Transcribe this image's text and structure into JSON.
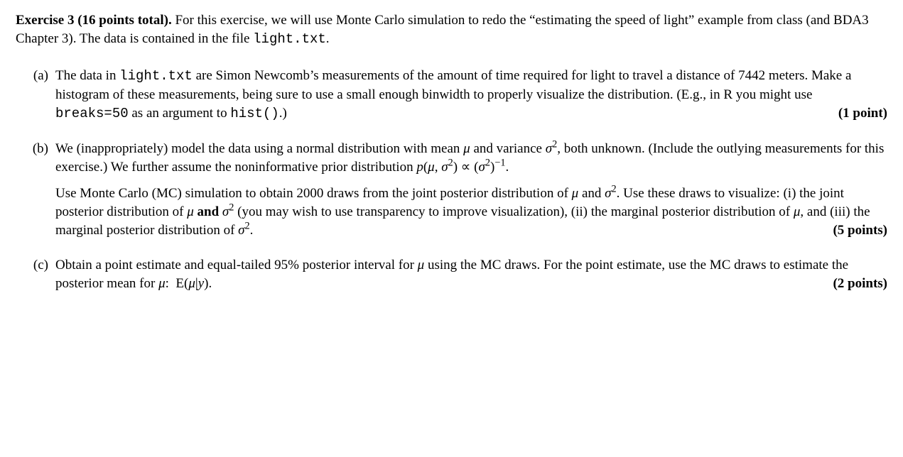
{
  "intro": {
    "title": "Exercise 3 (16 points total).",
    "rest1": " For this exercise, we will use Monte Carlo simulation to redo the “estimating the speed of light” example from class (and BDA3 Chapter 3). The data is contained in the file ",
    "file": "light.txt",
    "rest2": "."
  },
  "a": {
    "label": "(a)",
    "t1": "The data in ",
    "file": "light.txt",
    "t2": " are Simon Newcomb’s measurements of the amount of time required for light to travel a distance of 7442 meters. Make a histogram of these measurements, being sure to use a small enough binwidth to properly visualize the distribution. (E.g., in R you might use ",
    "code1": "breaks=50",
    "t3": " as an argument to ",
    "code2": "hist()",
    "t4": ".)",
    "points": "(1 point)"
  },
  "b": {
    "label": "(b)",
    "p1_t1": "We (inappropriately) model the data using a normal distribution with mean ",
    "mu": "μ",
    "p1_t2": " and variance ",
    "sigma2": "σ",
    "p1_t3": ", both unknown. (Include the outlying measurements for this exercise.) We further assume the noninformative prior distribution ",
    "prior_p": "p",
    "prior_open": "(",
    "prior_comma": ", ",
    "prior_close": ") ∝ (",
    "prior_exp": ")",
    "prior_neg1": "−1",
    "prior_end": ".",
    "p2_t1": "Use Monte Carlo (MC) simulation to obtain 2000 draws from the joint posterior distribution of ",
    "p2_t2": " and ",
    "p2_t3": ". Use these draws to visualize: (i) the joint posterior distribution of ",
    "and_bold": "and",
    "p2_t4": " (you may wish to use transparency to improve visualization), (ii) the marginal posterior distribution of ",
    "p2_t5": ", and (iii) the marginal posterior distribution of ",
    "p2_t6": ".",
    "points": "(5 points)"
  },
  "c": {
    "label": "(c)",
    "t1": "Obtain a point estimate and equal-tailed 95% posterior interval for ",
    "mu": "μ",
    "t2": " using the MC draws. For the point estimate, use the MC draws to estimate the posterior mean for ",
    "t3": ":  E(",
    "bar": "|",
    "y": "y",
    "t4": ").",
    "points": "(2 points)"
  }
}
